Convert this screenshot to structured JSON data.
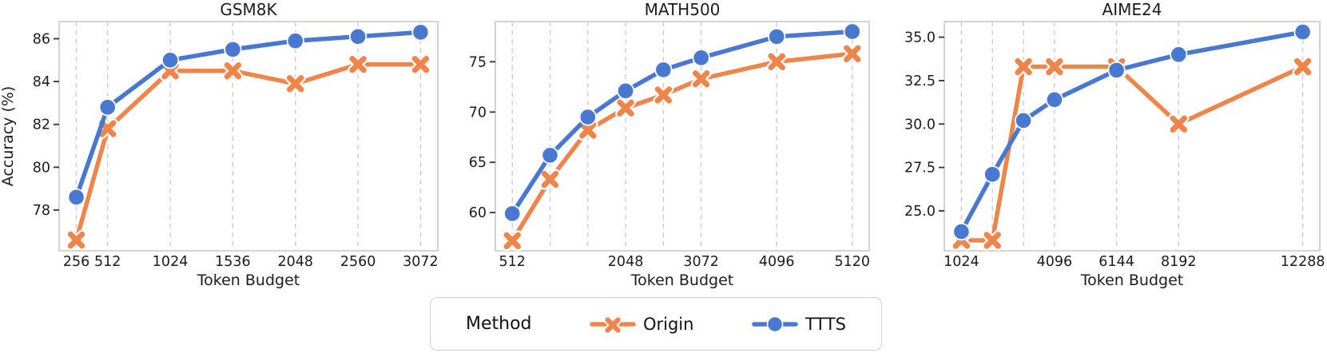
{
  "figure": {
    "xlabel": "Token Budget",
    "ylabel": "Accuracy (%)"
  },
  "colors": {
    "origin": "#EE854A",
    "ttts": "#4878D0",
    "grid": "#cccccc",
    "spine": "#c9c9c9",
    "tick": "#333333",
    "text": "#1c1c1c",
    "marker_edge": "#ffffff",
    "background": "#ffffff"
  },
  "legend": {
    "title": "Method",
    "items": [
      {
        "label": "Origin",
        "marker": "X",
        "color": "#EE854A"
      },
      {
        "label": "TTTS",
        "marker": "circle",
        "color": "#4878D0"
      }
    ]
  },
  "chart_data": [
    {
      "type": "line",
      "title": "GSM8K",
      "xlabel": "Token Budget",
      "ylabel": "Accuracy (%)",
      "x": [
        256,
        512,
        1024,
        1536,
        2048,
        2560,
        3072
      ],
      "x_tick_labels": [
        "256",
        "512",
        "1024",
        "1536",
        "2048",
        "2560",
        "3072"
      ],
      "y_ticks": [
        78,
        80,
        82,
        84,
        86
      ],
      "y_tick_labels": [
        "78",
        "80",
        "82",
        "84",
        "86"
      ],
      "xlim": [
        115,
        3213
      ],
      "ylim": [
        76.1,
        86.8
      ],
      "grid": "vertical-dashed",
      "legend_position": "bottom-center",
      "series": [
        {
          "name": "Origin",
          "marker": "X",
          "values": [
            76.6,
            81.8,
            84.5,
            84.5,
            83.9,
            84.8,
            84.8
          ]
        },
        {
          "name": "TTTS",
          "marker": "circle",
          "values": [
            78.6,
            82.8,
            85.0,
            85.5,
            85.9,
            86.1,
            86.3
          ]
        }
      ]
    },
    {
      "type": "line",
      "title": "MATH500",
      "xlabel": "Token Budget",
      "ylabel": "",
      "x": [
        512,
        1024,
        1536,
        2048,
        2560,
        3072,
        4096,
        5120
      ],
      "x_tick_labels": [
        "512",
        "",
        "",
        "2048",
        "",
        "3072",
        "4096",
        "5120"
      ],
      "y_ticks": [
        60,
        65,
        70,
        75
      ],
      "y_tick_labels": [
        "60",
        "65",
        "70",
        "75"
      ],
      "xlim": [
        282,
        5350
      ],
      "ylim": [
        56.2,
        79.0
      ],
      "grid": "vertical-dashed",
      "legend_position": "bottom-center",
      "series": [
        {
          "name": "Origin",
          "marker": "X",
          "values": [
            57.2,
            63.3,
            68.2,
            70.4,
            71.7,
            73.3,
            75.0,
            75.8
          ]
        },
        {
          "name": "TTTS",
          "marker": "circle",
          "values": [
            59.9,
            65.7,
            69.5,
            72.1,
            74.2,
            75.4,
            77.5,
            78.0
          ]
        }
      ]
    },
    {
      "type": "line",
      "title": "AIME24",
      "xlabel": "Token Budget",
      "ylabel": "",
      "x": [
        1024,
        2048,
        3072,
        4096,
        6144,
        8192,
        12288
      ],
      "x_tick_labels": [
        "1024",
        "",
        "",
        "4096",
        "6144",
        "8192",
        "12288"
      ],
      "y_ticks": [
        25.0,
        27.5,
        30.0,
        32.5,
        35.0
      ],
      "y_tick_labels": [
        "25.0",
        "27.5",
        "30.0",
        "32.5",
        "35.0"
      ],
      "xlim": [
        461,
        12851
      ],
      "ylim": [
        22.7,
        35.9
      ],
      "grid": "vertical-dashed",
      "legend_position": "bottom-center",
      "series": [
        {
          "name": "Origin",
          "marker": "X",
          "values": [
            23.3,
            23.3,
            33.3,
            33.3,
            33.3,
            30.0,
            33.3
          ]
        },
        {
          "name": "TTTS",
          "marker": "circle",
          "values": [
            23.8,
            27.1,
            30.2,
            31.4,
            33.1,
            34.0,
            35.3
          ]
        }
      ]
    }
  ]
}
